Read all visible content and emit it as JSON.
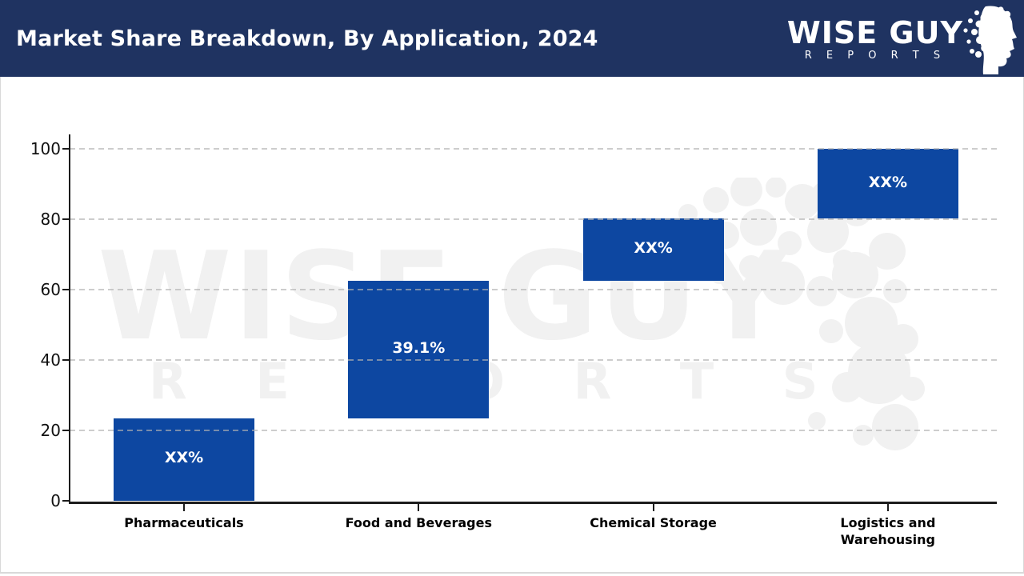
{
  "header": {
    "title": "Market Share Breakdown, By Application, 2024",
    "bg_color": "#1f3361",
    "logo": {
      "name": "WISE GUY",
      "tagline": "R E P O R T S"
    }
  },
  "watermark": {
    "line1": "WISE GUY",
    "line2": "R E P O R T S"
  },
  "chart_data": {
    "type": "bar",
    "variant": "waterfall-floating-bars",
    "title": "Market Share Breakdown, By Application, 2024",
    "categories": [
      "Pharmaceuticals",
      "Food and Beverages",
      "Chemical Storage",
      "Logistics and Warehousing"
    ],
    "category_display_lines": [
      [
        "Pharmaceuticals"
      ],
      [
        "Food and Beverages"
      ],
      [
        "Chemical Storage"
      ],
      [
        "Logistics and",
        "Warehousing"
      ]
    ],
    "series": [
      {
        "name": "Market share (%)",
        "segments": [
          {
            "category": "Pharmaceuticals",
            "from": 0,
            "to": 23.5,
            "label": "XX%"
          },
          {
            "category": "Food and Beverages",
            "from": 23.5,
            "to": 62.6,
            "label": "39.1%"
          },
          {
            "category": "Chemical Storage",
            "from": 62.6,
            "to": 80.2,
            "label": "XX%"
          },
          {
            "category": "Logistics and Warehousing",
            "from": 80.2,
            "to": 100,
            "label": "XX%"
          }
        ]
      }
    ],
    "xlabel": "",
    "ylabel": "",
    "ylim": [
      0,
      100
    ],
    "yticks": [
      0,
      20,
      40,
      60,
      80,
      100
    ],
    "grid": true,
    "gridline_style": "dashed",
    "legend_position": "none",
    "bar_color": "#0d47a1",
    "bar_label_color": "#ffffff",
    "axis_color": "#1c1c1c"
  }
}
